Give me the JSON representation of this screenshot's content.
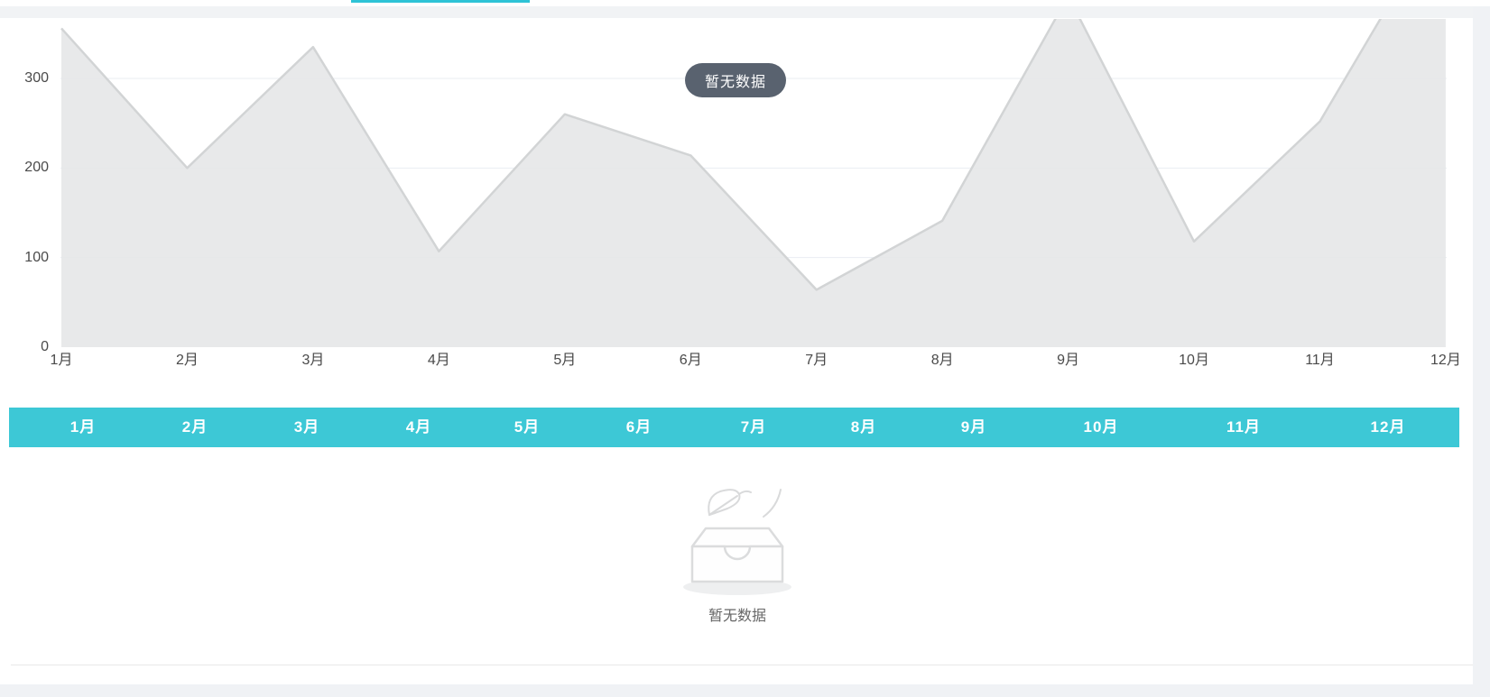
{
  "header": {
    "tab_indicator_color": "#2ec3d6"
  },
  "chart_data": {
    "type": "area",
    "title": "",
    "categories": [
      "1月",
      "2月",
      "3月",
      "4月",
      "5月",
      "6月",
      "7月",
      "8月",
      "9月",
      "10月",
      "11月",
      "12月"
    ],
    "values": [
      356,
      200,
      335,
      107,
      260,
      214,
      64,
      141,
      392,
      118,
      252,
      490
    ],
    "yticks": [
      0,
      100,
      200,
      300
    ],
    "ylim": [
      0,
      367
    ],
    "grid": true,
    "legend": "none",
    "no_data_label": "暂无数据",
    "area_fill_color": "#e5e6e7",
    "area_line_color": "#d2d4d5",
    "gridline_color": "#e9edf2",
    "badge_bg_color": "#59626f"
  },
  "month_bar": {
    "months": [
      "1月",
      "2月",
      "3月",
      "4月",
      "5月",
      "6月",
      "7月",
      "8月",
      "9月",
      "10月",
      "11月",
      "12月"
    ],
    "bg_color": "#3dc8d6",
    "text_color": "#ffffff"
  },
  "empty_state": {
    "icon": "empty-inbox-icon",
    "label": "暂无数据"
  },
  "page": {
    "background_strip_color": "#f0f2f5"
  }
}
